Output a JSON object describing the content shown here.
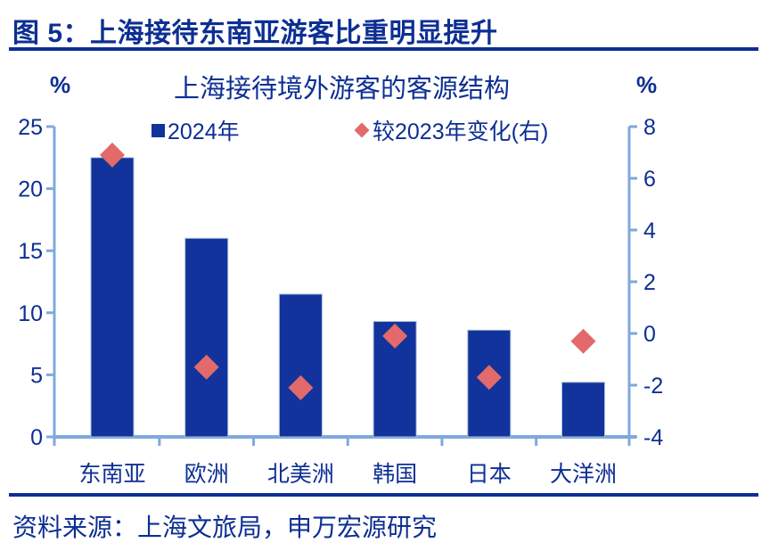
{
  "figure": {
    "title": "图 5：上海接待东南亚游客比重明显提升"
  },
  "source": {
    "text": "资料来源：上海文旅局，申万宏源研究"
  },
  "chart_data": {
    "type": "bar",
    "title": "上海接待境外游客的客源结构",
    "categories": [
      "东南亚",
      "欧洲",
      "北美洲",
      "韩国",
      "日本",
      "大洋洲"
    ],
    "series": [
      {
        "name": "2024年",
        "type": "bar",
        "axis": "left",
        "marker": "square",
        "values": [
          22.5,
          16.0,
          11.5,
          9.3,
          8.6,
          4.4
        ]
      },
      {
        "name": "较2023年变化(右)",
        "type": "scatter",
        "axis": "right",
        "marker": "diamond",
        "values": [
          6.9,
          -1.3,
          -2.1,
          -0.1,
          -1.7,
          -0.3
        ]
      }
    ],
    "left_axis": {
      "unit": "%",
      "min": 0,
      "max": 25,
      "ticks": [
        0,
        5,
        10,
        15,
        20,
        25
      ]
    },
    "right_axis": {
      "unit": "%",
      "min": -4,
      "max": 8,
      "ticks": [
        -4,
        -2,
        0,
        2,
        4,
        6,
        8
      ]
    },
    "legend_position": "top",
    "grid": false
  },
  "colors": {
    "navy_text": "#0D2F93",
    "bar_fill": "#12339B",
    "bar_outline": "#A9BCDC",
    "diamond_fill": "#E26A6A",
    "axis_line": "#7FA9DC",
    "rule": "#0D2F93",
    "background": "#FFFFFF"
  }
}
